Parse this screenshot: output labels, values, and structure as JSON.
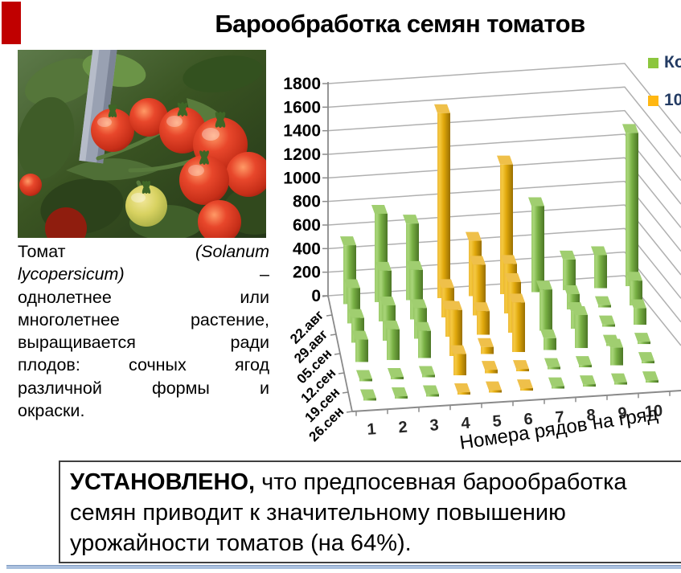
{
  "slide": {
    "title": "Барообработка семян томатов",
    "accent_bar_color": "#C00000",
    "divider_color": "#AAC0DE"
  },
  "photo": {
    "label": "tomato-plant-photo"
  },
  "description": {
    "lines": [
      {
        "words": [
          {
            "t": "Томат"
          },
          {
            "t": "(Solanum",
            "italic": true
          }
        ]
      },
      {
        "words": [
          {
            "t": "lycopersicum)",
            "italic": true
          },
          {
            "t": "–"
          }
        ]
      },
      {
        "words": [
          {
            "t": "однолетнее"
          },
          {
            "t": "или"
          }
        ]
      },
      {
        "words": [
          {
            "t": "многолетнее"
          },
          {
            "t": "растение,"
          }
        ]
      },
      {
        "words": [
          {
            "t": "выращивается"
          },
          {
            "t": "ради"
          }
        ]
      },
      {
        "words": [
          {
            "t": "плодов:"
          },
          {
            "t": "сочных"
          },
          {
            "t": "ягод"
          }
        ]
      },
      {
        "words": [
          {
            "t": "различной"
          },
          {
            "t": "формы"
          },
          {
            "t": "и"
          }
        ]
      },
      {
        "words": [
          {
            "t": "окраски."
          }
        ]
      }
    ]
  },
  "findings": {
    "lines": [
      {
        "bold": "УСТАНОВЛЕНО,",
        "rest": " что предпосевная барообработка"
      },
      {
        "bold": "",
        "rest": "семян приводит к значительному повышению"
      },
      {
        "bold": "",
        "rest": "урожайности томатов (на 64%)."
      }
    ]
  },
  "chart_data": {
    "type": "bar",
    "projection": "3d-column",
    "title": "",
    "value_axis": {
      "min": 0,
      "max": 1800,
      "step": 200,
      "ticks": [
        "0",
        "200",
        "400",
        "600",
        "800",
        "1000",
        "1200",
        "1400",
        "1600",
        "1800"
      ]
    },
    "category_axis": {
      "title": "Номера рядов на гряд",
      "categories": [
        "1",
        "2",
        "3",
        "4",
        "5",
        "6",
        "7",
        "8",
        "9",
        "10"
      ]
    },
    "depth_axis": {
      "categories": [
        "22.авг",
        "29.авг",
        "05.сен",
        "12.сен",
        "19.сен",
        "26.сен"
      ]
    },
    "legend_position": "top-right",
    "legend": [
      {
        "label": "Ко",
        "color": "#8CC63E"
      },
      {
        "label": "10",
        "color": "#FFB712"
      }
    ],
    "bar_colors": {
      "control": "#76AE41",
      "treated": "#DFA705"
    },
    "treated_rows": [
      4,
      5,
      6
    ],
    "grid": true,
    "series": [
      {
        "name": "22.авг",
        "values": [
          500,
          750,
          650,
          1570,
          470,
          1100,
          730,
          260,
          280,
          1300
        ]
      },
      {
        "name": "29.авг",
        "values": [
          300,
          430,
          420,
          250,
          430,
          420,
          0,
          130,
          20,
          210
        ]
      },
      {
        "name": "05.сен",
        "values": [
          210,
          300,
          260,
          230,
          200,
          430,
          350,
          150,
          20,
          140
        ]
      },
      {
        "name": "12.сен",
        "values": [
          190,
          260,
          230,
          390,
          60,
          420,
          100,
          280,
          20,
          20
        ]
      },
      {
        "name": "19.сен",
        "values": [
          20,
          20,
          20,
          180,
          30,
          20,
          20,
          20,
          150,
          20
        ]
      },
      {
        "name": "26.сен",
        "values": [
          20,
          20,
          20,
          20,
          20,
          20,
          20,
          20,
          20,
          20
        ]
      }
    ]
  }
}
